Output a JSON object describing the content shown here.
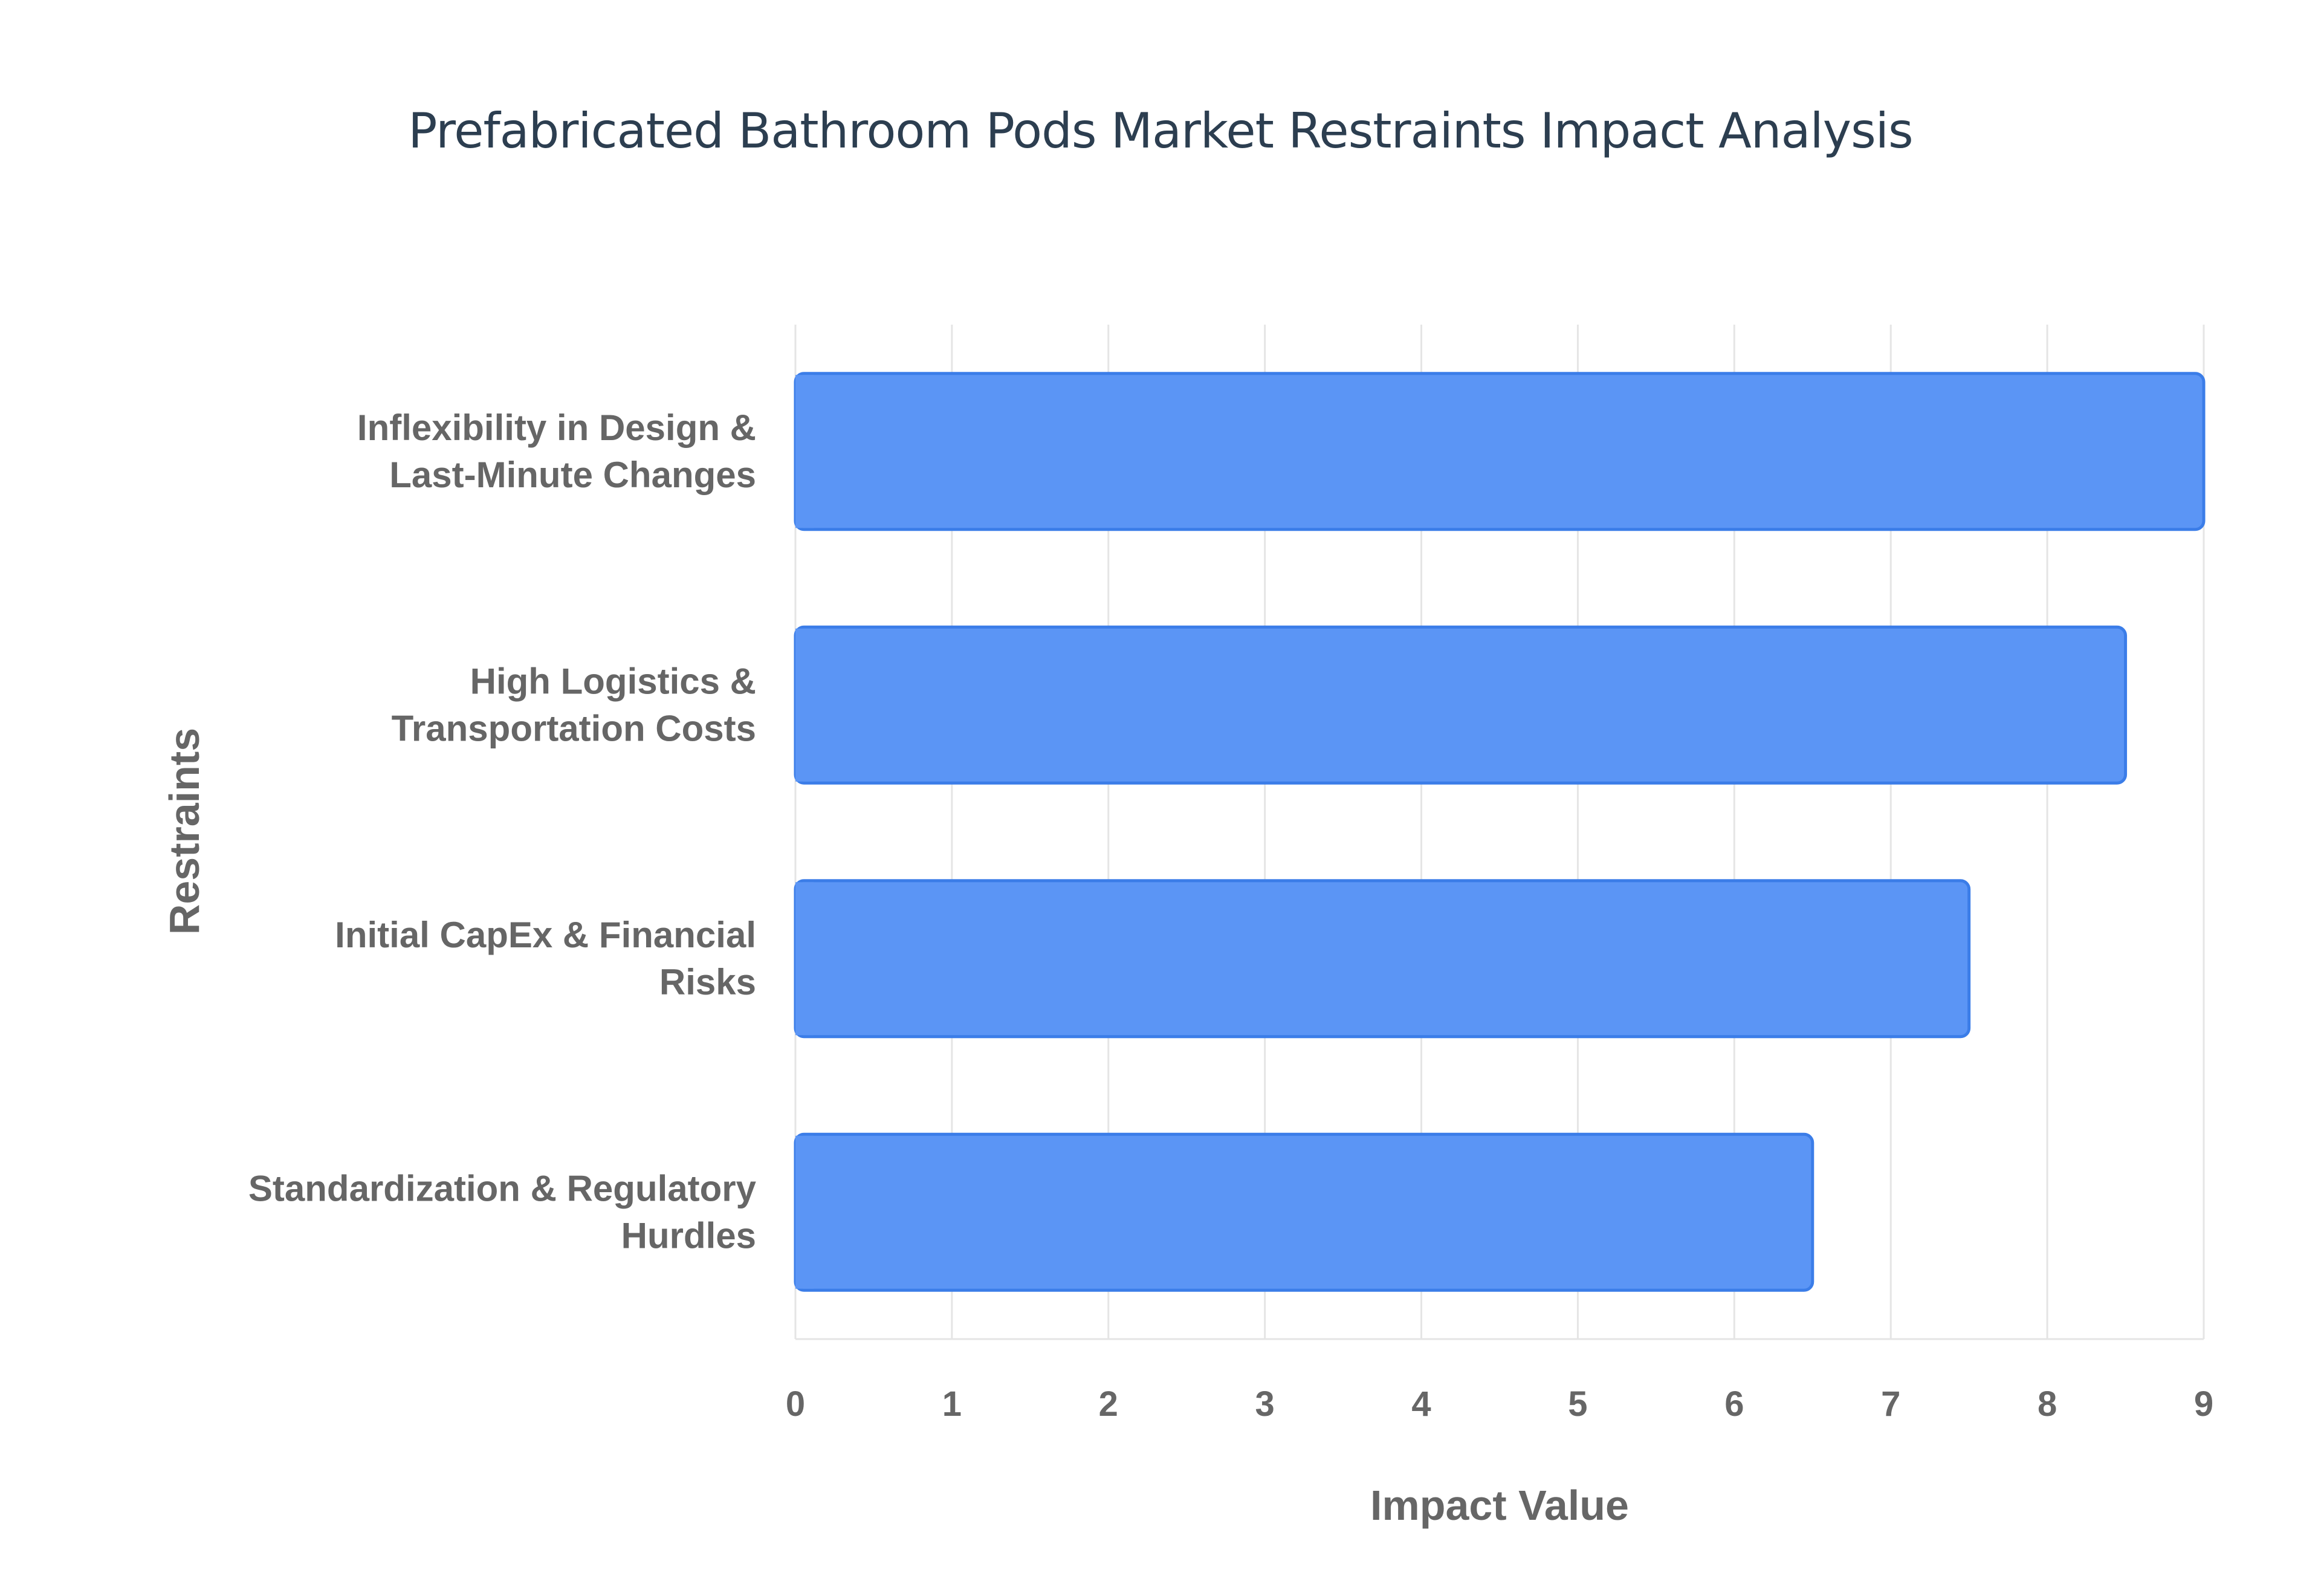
{
  "chart_data": {
    "type": "bar",
    "orientation": "horizontal",
    "title": "Prefabricated Bathroom Pods Market Restraints Impact Analysis",
    "xlabel": "Impact Value",
    "ylabel": "Restraints",
    "categories": [
      [
        "Inflexibility in Design &",
        "Last-Minute Changes"
      ],
      [
        "High Logistics &",
        "Transportation Costs"
      ],
      [
        "Initial CapEx & Financial",
        "Risks"
      ],
      [
        "Standardization & Regulatory",
        "Hurdles"
      ]
    ],
    "values": [
      9,
      8.5,
      7.5,
      6.5
    ],
    "xlim": [
      0,
      9
    ],
    "xticks": [
      "0",
      "1",
      "2",
      "3",
      "4",
      "5",
      "6",
      "7",
      "8",
      "9"
    ],
    "grid": true,
    "legend": "none",
    "colors": {
      "bar_fill": "#5b95f5",
      "bar_stroke": "#3b7de8",
      "grid": "#e5e5e5",
      "axis_text": "#666666",
      "title_text": "#2c3e50"
    }
  }
}
